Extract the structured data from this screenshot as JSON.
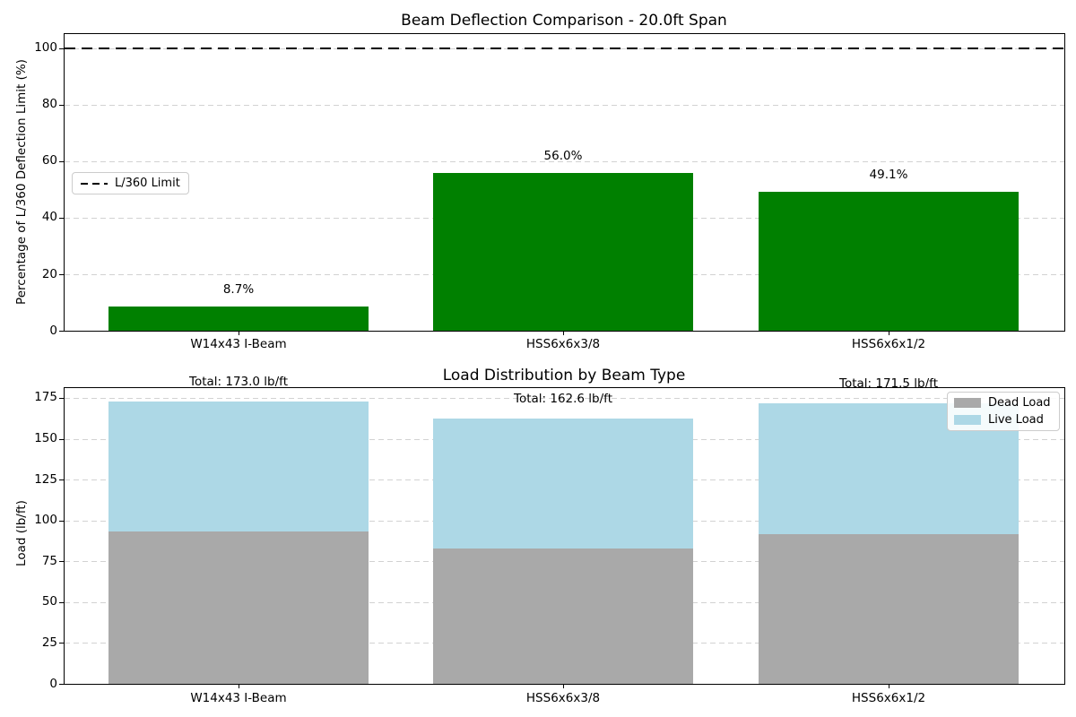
{
  "figure": {
    "background": "#ffffff"
  },
  "chart_data": [
    {
      "type": "bar",
      "title": "Beam Deflection Comparison - 20.0ft Span",
      "ylabel": "Percentage of L/360 Deflection Limit (%)",
      "xlabel": "",
      "categories": [
        "W14x43 I-Beam",
        "HSS6x6x3/8",
        "HSS6x6x1/2"
      ],
      "values": [
        8.7,
        56.0,
        49.1
      ],
      "bar_labels": [
        "8.7%",
        "56.0%",
        "49.1%"
      ],
      "bar_color": "#008000",
      "yticks": [
        0,
        20,
        40,
        60,
        80,
        100
      ],
      "ylim": [
        0,
        105
      ],
      "grid": "dashed-horizontal",
      "reference_line": {
        "value": 100,
        "label": "L/360 Limit",
        "color": "#000000",
        "style": "dashed"
      },
      "legend": {
        "position": "center-left",
        "entries": [
          {
            "type": "dashed-line",
            "color": "#000000",
            "label": "L/360 Limit"
          }
        ]
      }
    },
    {
      "type": "stacked-bar",
      "title": "Load Distribution by Beam Type",
      "ylabel": "Load (lb/ft)",
      "xlabel": "",
      "categories": [
        "W14x43 I-Beam",
        "HSS6x6x3/8",
        "HSS6x6x1/2"
      ],
      "series": [
        {
          "name": "Dead Load",
          "color": "#a9a9a9",
          "values": [
            93.0,
            82.6,
            91.5
          ]
        },
        {
          "name": "Live Load",
          "color": "#add8e6",
          "values": [
            80.0,
            80.0,
            80.0
          ]
        }
      ],
      "totals": [
        173.0,
        162.6,
        171.5
      ],
      "total_labels": [
        "Total: 173.0 lb/ft",
        "Total: 162.6 lb/ft",
        "Total: 171.5 lb/ft"
      ],
      "yticks": [
        0,
        25,
        50,
        75,
        100,
        125,
        150,
        175
      ],
      "ylim": [
        0,
        181
      ],
      "grid": "dashed-horizontal",
      "legend": {
        "position": "top-right",
        "entries": [
          {
            "type": "patch",
            "color": "#a9a9a9",
            "label": "Dead Load"
          },
          {
            "type": "patch",
            "color": "#add8e6",
            "label": "Live Load"
          }
        ]
      }
    }
  ]
}
